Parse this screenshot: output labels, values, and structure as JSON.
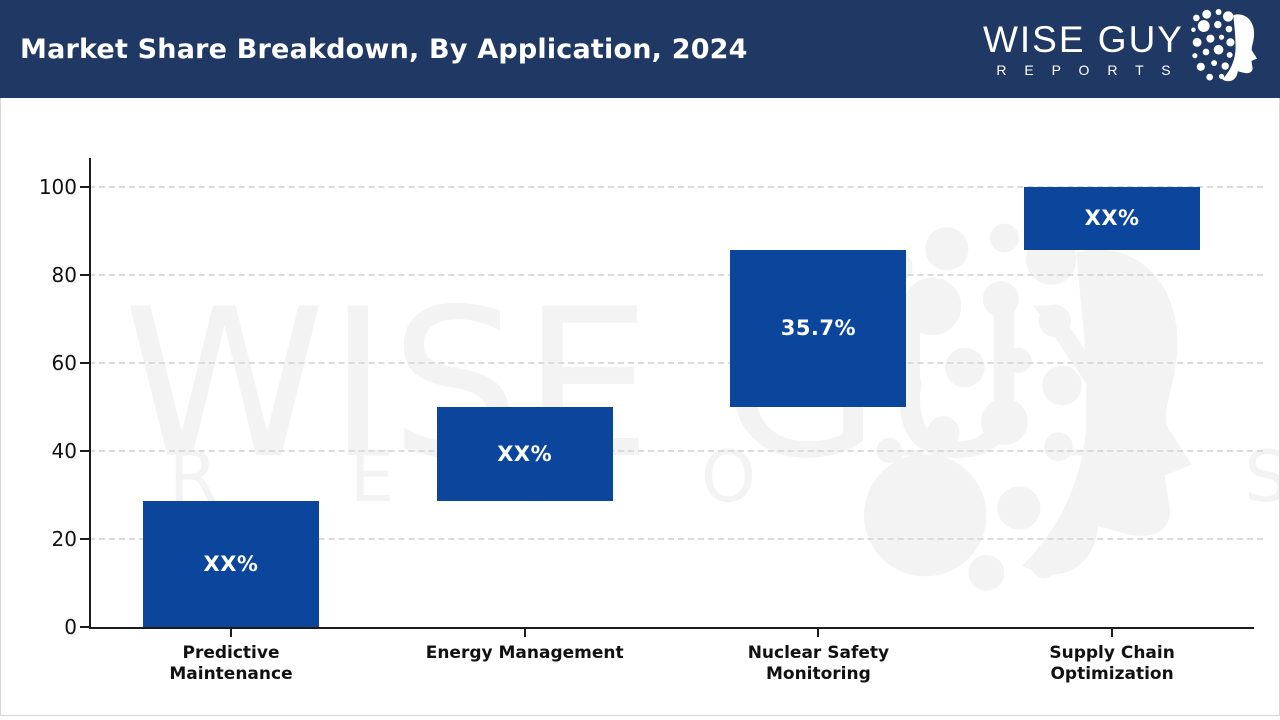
{
  "header": {
    "title": "Market Share Breakdown, By Application, 2024",
    "background_color": "#1f3864",
    "logo": {
      "line1": "WISE GUY",
      "line2": "R E P O R T S",
      "face_icon": "dotted-head-profile"
    }
  },
  "chart_data": {
    "type": "bar",
    "subtype": "floating-segment-waterfall",
    "title": "Market Share Breakdown, By Application, 2024",
    "categories": [
      "Predictive Maintenance",
      "Energy Management",
      "Nuclear Safety Monitoring",
      "Supply Chain Optimization"
    ],
    "category_label_lines": [
      [
        "Predictive",
        "Maintenance"
      ],
      [
        "Energy Management"
      ],
      [
        "Nuclear Safety",
        "Monitoring"
      ],
      [
        "Supply Chain",
        "Optimization"
      ]
    ],
    "segments": [
      {
        "category": "Predictive Maintenance",
        "start": 0,
        "end": 28.6,
        "label": "XX%"
      },
      {
        "category": "Energy Management",
        "start": 28.6,
        "end": 50,
        "label": "XX%"
      },
      {
        "category": "Nuclear Safety Monitoring",
        "start": 50,
        "end": 85.7,
        "label": "35.7%"
      },
      {
        "category": "Supply Chain Optimization",
        "start": 85.7,
        "end": 100,
        "label": "XX%"
      }
    ],
    "ylim": [
      0,
      100
    ],
    "yticks": [
      0,
      20,
      40,
      60,
      80,
      100
    ],
    "xlabel": "",
    "ylabel": "",
    "grid": "horizontal-dashed",
    "legend": "none",
    "bar_color": "#0b459c",
    "bar_label_color": "#ffffff",
    "watermark": {
      "line1": "WISE GUY",
      "line2": "R E P O R T S"
    }
  }
}
